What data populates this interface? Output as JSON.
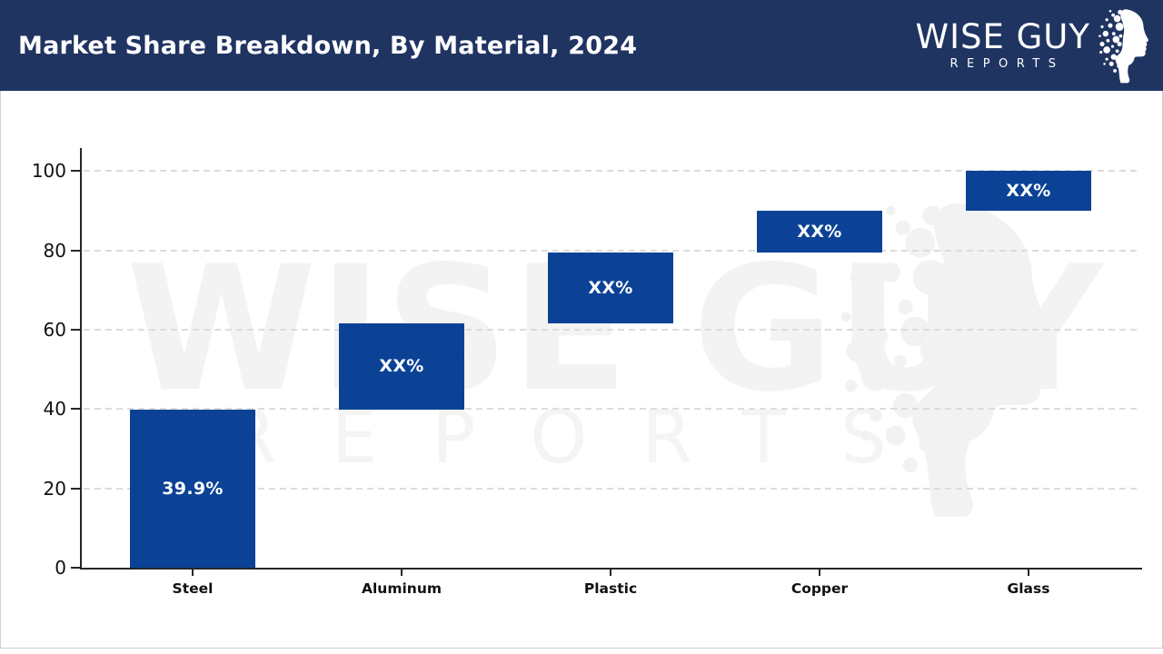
{
  "header": {
    "title": "Market Share Breakdown, By Material, 2024",
    "logo": {
      "line1": "WISE GUY",
      "line2": "REPORTS"
    }
  },
  "watermark": {
    "line1": "WISE GUY",
    "line2": "REPORTS"
  },
  "chart_data": {
    "type": "bar",
    "subtype": "waterfall",
    "title": "Market Share Breakdown, By Material, 2024",
    "categories": [
      "Steel",
      "Aluminum",
      "Plastic",
      "Copper",
      "Glass"
    ],
    "series": [
      {
        "name": "Market share (%)",
        "segments": [
          {
            "category": "Steel",
            "start": 0,
            "end": 39.9,
            "label": "39.9%"
          },
          {
            "category": "Aluminum",
            "start": 39.9,
            "end": 61.7,
            "label": "XX%"
          },
          {
            "category": "Plastic",
            "start": 61.7,
            "end": 79.4,
            "label": "XX%"
          },
          {
            "category": "Copper",
            "start": 79.4,
            "end": 90.1,
            "label": "XX%"
          },
          {
            "category": "Glass",
            "start": 90.1,
            "end": 100,
            "label": "XX%"
          }
        ]
      }
    ],
    "yticks": [
      0,
      20,
      40,
      60,
      80,
      100
    ],
    "ylim": [
      0,
      105.8
    ],
    "xlabel": "",
    "ylabel": "",
    "grid": "horizontal-dashed",
    "legend": "none",
    "colors": {
      "bar": "#0b4296",
      "bar_label": "#ffffff",
      "grid": "#dcdcdc",
      "axis": "#262626",
      "tick_text": "#111111"
    }
  },
  "colors": {
    "header_bg": "#203462",
    "card_border": "#cfcfcf",
    "watermark": "#f3f3f3",
    "background": "#ffffff"
  }
}
